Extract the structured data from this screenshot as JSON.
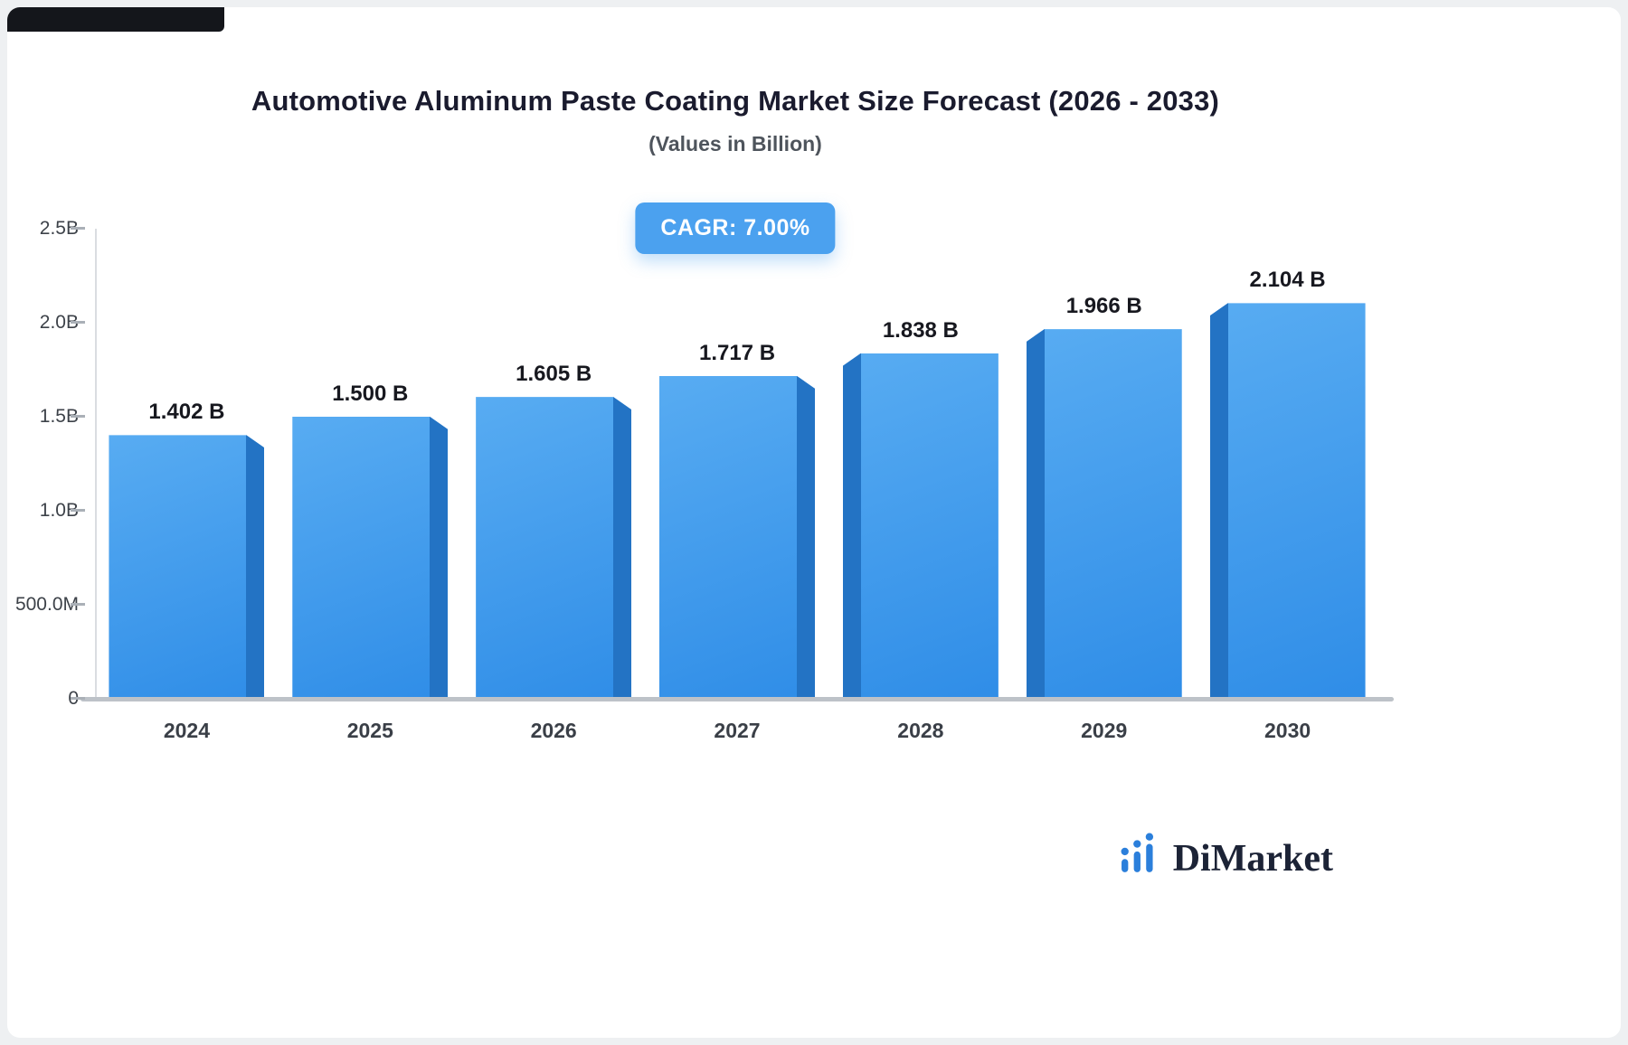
{
  "badge": {
    "label": "CAGR: 7.00%",
    "color": "#4ba1ef"
  },
  "chart_data": {
    "type": "bar",
    "title": "Automotive Aluminum Paste Coating Market Size Forecast (2026 - 2033)",
    "subtitle": "(Values in Billion)",
    "categories": [
      "2024",
      "2025",
      "2026",
      "2027",
      "2028",
      "2029",
      "2030"
    ],
    "values": [
      1.402,
      1.5,
      1.605,
      1.717,
      1.838,
      1.966,
      2.104
    ],
    "value_labels": [
      "1.402 B",
      "1.500 B",
      "1.605 B",
      "1.717 B",
      "1.838 B",
      "1.966 B",
      "2.104 B"
    ],
    "unit": "Billion",
    "xlabel": "",
    "ylabel": "",
    "ylim": [
      0,
      2.5
    ],
    "y_ticks": [
      "0",
      "500.0M",
      "1.0B",
      "1.5B",
      "2.0B",
      "2.5B"
    ],
    "y_tick_values": [
      0,
      0.5,
      1.0,
      1.5,
      2.0,
      2.5
    ],
    "grid": false,
    "legend": false,
    "bar_color_top": "#58acf2",
    "bar_color_bottom": "#2f8de7",
    "bar_side_color": "#2373c4"
  },
  "logo": {
    "text": "DiMarket",
    "icon": "bar-chart-logo-icon",
    "color": "#2b7fdb"
  }
}
